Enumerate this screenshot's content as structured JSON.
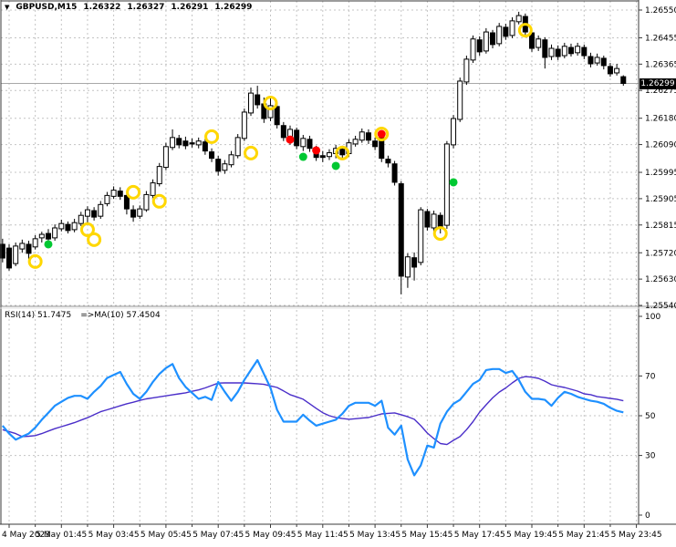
{
  "header": {
    "dropdown_icon": "▼",
    "symbol": "GBPUSD,M15",
    "open": "1.26322",
    "high": "1.26327",
    "low": "1.26291",
    "close": "1.26299"
  },
  "rsi_header": {
    "rsi_label": "RSI(14) 51.7475",
    "ma_label": "=>MA(10) 57.4504"
  },
  "price_axis": {
    "labels": [
      "1.26550",
      "1.26455",
      "1.26365",
      "1.26275",
      "1.26180",
      "1.26090",
      "1.25995",
      "1.25905",
      "1.25815",
      "1.25720",
      "1.25630",
      "1.25540"
    ],
    "current": "1.26299"
  },
  "rsi_axis": {
    "labels": [
      "100",
      "70",
      "50",
      "30",
      "0"
    ],
    "values": [
      100,
      70,
      50,
      30,
      0
    ],
    "level_lines": [
      70,
      50,
      30
    ]
  },
  "time_axis": {
    "labels": [
      "4 May 2023",
      "5 May 01:45",
      "5 May 03:45",
      "5 May 05:45",
      "5 May 07:45",
      "5 May 09:45",
      "5 May 11:45",
      "5 May 13:45",
      "5 May 15:45",
      "5 May 17:45",
      "5 May 19:45",
      "5 May 21:45",
      "5 May 23:45"
    ]
  },
  "colors": {
    "background": "#FFFFFF",
    "grid": "#C4C4C4",
    "border": "#3A3A3A",
    "candle_up_fill": "#FFFFFF",
    "candle_down_fill": "#000000",
    "candle_border": "#000000",
    "rsi_line": "#1E90FF",
    "rsi_ma_line": "#4A2EC9",
    "signal_circle": "#FFD700",
    "buy_dot": "#00C832",
    "sell_dot": "#FF0000",
    "current_price_line": "#A8A8A8",
    "current_price_bg": "#000000",
    "current_price_text": "#FFFFFF",
    "axis_text": "#000000"
  },
  "chart_data": [
    {
      "type": "candlestick",
      "symbol": "GBPUSD",
      "timeframe": "M15",
      "ylim": [
        1.2554,
        1.2655
      ],
      "ohlc": [
        [
          1.25749,
          1.25768,
          1.25687,
          1.25702
        ],
        [
          1.25736,
          1.25749,
          1.25659,
          1.25668
        ],
        [
          1.25683,
          1.25755,
          1.25674,
          1.25743
        ],
        [
          1.25733,
          1.25765,
          1.2572,
          1.25752
        ],
        [
          1.25749,
          1.25761,
          1.25696,
          1.25718
        ],
        [
          1.2574,
          1.2578,
          1.25731,
          1.25768
        ],
        [
          1.25771,
          1.25792,
          1.25755,
          1.25783
        ],
        [
          1.25786,
          1.25801,
          1.25755,
          1.25767
        ],
        [
          1.25771,
          1.25817,
          1.25761,
          1.25805
        ],
        [
          1.25802,
          1.25833,
          1.25793,
          1.2582
        ],
        [
          1.25817,
          1.25827,
          1.25786,
          1.25796
        ],
        [
          1.25799,
          1.25836,
          1.2579,
          1.25823
        ],
        [
          1.2582,
          1.2586,
          1.25811,
          1.25848
        ],
        [
          1.25845,
          1.25879,
          1.25823,
          1.25867
        ],
        [
          1.25864,
          1.25876,
          1.2583,
          1.25842
        ],
        [
          1.25845,
          1.25897,
          1.25836,
          1.25885
        ],
        [
          1.25888,
          1.25928,
          1.25879,
          1.25916
        ],
        [
          1.25913,
          1.25947,
          1.25904,
          1.25934
        ],
        [
          1.25931,
          1.25944,
          1.25901,
          1.25913
        ],
        [
          1.25916,
          1.25928,
          1.25851,
          1.2587
        ],
        [
          1.25867,
          1.25882,
          1.25826,
          1.25842
        ],
        [
          1.25845,
          1.25882,
          1.25836,
          1.2587
        ],
        [
          1.25867,
          1.25931,
          1.2586,
          1.25919
        ],
        [
          1.25916,
          1.25971,
          1.25907,
          1.25959
        ],
        [
          1.25956,
          1.26027,
          1.25947,
          1.26015
        ],
        [
          1.26012,
          1.26096,
          1.26003,
          1.26083
        ],
        [
          1.2608,
          1.26142,
          1.26071,
          1.26114
        ],
        [
          1.26111,
          1.26123,
          1.26077,
          1.26089
        ],
        [
          1.26102,
          1.26117,
          1.26074,
          1.26086
        ],
        [
          1.26096,
          1.26111,
          1.2608,
          1.26092
        ],
        [
          1.26089,
          1.26114,
          1.26077,
          1.26102
        ],
        [
          1.26099,
          1.26111,
          1.26055,
          1.26068
        ],
        [
          1.26065,
          1.26077,
          1.2603,
          1.26043
        ],
        [
          1.2604,
          1.26052,
          1.25984,
          1.25999
        ],
        [
          1.26002,
          1.26037,
          1.2599,
          1.26024
        ],
        [
          1.26021,
          1.26068,
          1.26012,
          1.26055
        ],
        [
          1.26052,
          1.26126,
          1.26043,
          1.26114
        ],
        [
          1.26111,
          1.26213,
          1.26102,
          1.26201
        ],
        [
          1.26198,
          1.26285,
          1.26188,
          1.26266
        ],
        [
          1.2626,
          1.26291,
          1.26213,
          1.26226
        ],
        [
          1.26229,
          1.26251,
          1.26164,
          1.26179
        ],
        [
          1.26182,
          1.26248,
          1.2617,
          1.26223
        ],
        [
          1.2622,
          1.26232,
          1.26145,
          1.26158
        ],
        [
          1.26155,
          1.26167,
          1.26102,
          1.26114
        ],
        [
          1.26111,
          1.26155,
          1.26089,
          1.26142
        ],
        [
          1.26139,
          1.26148,
          1.26074,
          1.26086
        ],
        [
          1.26083,
          1.26123,
          1.26068,
          1.26111
        ],
        [
          1.26108,
          1.2612,
          1.26065,
          1.26077
        ],
        [
          1.26074,
          1.26086,
          1.26034,
          1.26046
        ],
        [
          1.26052,
          1.26068,
          1.2603,
          1.26046
        ],
        [
          1.26049,
          1.26074,
          1.26037,
          1.26062
        ],
        [
          1.26059,
          1.26089,
          1.26043,
          1.26077
        ],
        [
          1.26074,
          1.26086,
          1.2604,
          1.26055
        ],
        [
          1.26059,
          1.26108,
          1.26049,
          1.26096
        ],
        [
          1.26092,
          1.2612,
          1.26083,
          1.26108
        ],
        [
          1.26105,
          1.26145,
          1.26096,
          1.26133
        ],
        [
          1.2613,
          1.26142,
          1.26092,
          1.26105
        ],
        [
          1.26102,
          1.26114,
          1.26071,
          1.26083
        ],
        [
          1.26114,
          1.2613,
          1.2603,
          1.26043
        ],
        [
          1.2604,
          1.26052,
          1.26012,
          1.26027
        ],
        [
          1.26024,
          1.26034,
          1.2595,
          1.25961
        ],
        [
          1.25956,
          1.25965,
          1.25578,
          1.2564
        ],
        [
          1.25637,
          1.25718,
          1.256,
          1.25706
        ],
        [
          1.25703,
          1.25721,
          1.25625,
          1.25671
        ],
        [
          1.25687,
          1.25876,
          1.25677,
          1.25867
        ],
        [
          1.25861,
          1.2587,
          1.25796,
          1.25808
        ],
        [
          1.25805,
          1.25864,
          1.25793,
          1.25852
        ],
        [
          1.25848,
          1.25858,
          1.25786,
          1.25811
        ],
        [
          1.25814,
          1.26102,
          1.25802,
          1.26092
        ],
        [
          1.26089,
          1.26191,
          1.26077,
          1.26179
        ],
        [
          1.26176,
          1.26319,
          1.26167,
          1.26307
        ],
        [
          1.26304,
          1.26394,
          1.26294,
          1.26382
        ],
        [
          1.26379,
          1.26463,
          1.26369,
          1.26451
        ],
        [
          1.26448,
          1.2646,
          1.26394,
          1.26407
        ],
        [
          1.2641,
          1.26488,
          1.26401,
          1.26475
        ],
        [
          1.26472,
          1.26482,
          1.26419,
          1.26432
        ],
        [
          1.26435,
          1.26506,
          1.26426,
          1.26494
        ],
        [
          1.26491,
          1.26503,
          1.26448,
          1.2646
        ],
        [
          1.26463,
          1.26525,
          1.26454,
          1.26513
        ],
        [
          1.2651,
          1.26544,
          1.26501,
          1.26531
        ],
        [
          1.26528,
          1.26538,
          1.26463,
          1.26475
        ],
        [
          1.26472,
          1.26482,
          1.26407,
          1.26419
        ],
        [
          1.26422,
          1.26463,
          1.2641,
          1.26451
        ],
        [
          1.26448,
          1.26457,
          1.2635,
          1.26388
        ],
        [
          1.26391,
          1.26432,
          1.26379,
          1.26419
        ],
        [
          1.26416,
          1.26429,
          1.26379,
          1.26391
        ],
        [
          1.26394,
          1.26438,
          1.26385,
          1.26426
        ],
        [
          1.26422,
          1.26435,
          1.26391,
          1.26401
        ],
        [
          1.26404,
          1.26438,
          1.26394,
          1.26426
        ],
        [
          1.26422,
          1.26432,
          1.26382,
          1.26394
        ],
        [
          1.26391,
          1.26404,
          1.26354,
          1.26366
        ],
        [
          1.26369,
          1.26401,
          1.2636,
          1.26388
        ],
        [
          1.26385,
          1.26394,
          1.26347,
          1.2636
        ],
        [
          1.26357,
          1.26369,
          1.26322,
          1.26332
        ],
        [
          1.26335,
          1.26366,
          1.26326,
          1.2635
        ],
        [
          1.26322,
          1.26327,
          1.26291,
          1.26299
        ]
      ],
      "markers": {
        "signal_circles": [
          [
            5,
            1.2569
          ],
          [
            13,
            1.25799
          ],
          [
            14,
            1.25765
          ],
          [
            20,
            1.25927
          ],
          [
            24,
            1.25896
          ],
          [
            32,
            1.26117
          ],
          [
            38,
            1.26061
          ],
          [
            41,
            1.26232
          ],
          [
            52,
            1.26061
          ],
          [
            58,
            1.26126
          ],
          [
            67,
            1.25786
          ],
          [
            80,
            1.26481
          ]
        ],
        "buy_dots": [
          [
            7,
            1.25749
          ],
          [
            46,
            1.26048
          ],
          [
            51,
            1.26017
          ],
          [
            69,
            1.25961
          ]
        ],
        "sell_dots": [
          [
            44,
            1.26107
          ],
          [
            48,
            1.2607
          ],
          [
            58,
            1.26126
          ]
        ]
      },
      "current_price": 1.26299
    },
    {
      "type": "line",
      "name": "RSI(14)",
      "ma_name": "MA(10)",
      "ylim": [
        0,
        100
      ],
      "rsi_values": [
        45,
        41,
        38,
        39.5,
        41,
        44,
        48,
        51.5,
        55,
        57,
        59,
        60,
        60,
        58.5,
        62,
        65,
        69,
        70.5,
        72,
        66,
        61,
        58.5,
        62,
        67,
        71,
        74,
        76,
        69,
        64.5,
        61.5,
        58.5,
        59.5,
        58,
        67,
        62,
        57.5,
        62,
        68,
        73,
        78,
        71,
        64,
        53,
        47,
        47,
        47,
        50.5,
        47.5,
        45,
        46,
        47,
        48,
        51,
        55,
        56.5,
        56.5,
        56.5,
        55,
        57.5,
        44,
        40.5,
        45,
        28,
        20,
        25,
        35,
        34,
        46,
        52,
        56,
        58,
        62,
        66,
        68,
        73,
        73.5,
        73.5,
        71.5,
        72.5,
        68,
        62,
        58.5,
        58.5,
        58,
        55,
        59,
        62,
        61,
        59.5,
        58.5,
        57.5,
        57,
        56,
        54,
        52.5,
        51.7
      ],
      "ma_values": [
        43,
        42,
        41,
        39.5,
        39.7,
        40,
        41,
        42.3,
        43.5,
        44.5,
        45.5,
        46.5,
        47.8,
        49,
        50.5,
        52,
        53,
        54,
        55,
        56,
        56.8,
        57.7,
        58.5,
        59,
        59.5,
        60,
        60.5,
        61,
        61.5,
        62.3,
        63,
        64,
        65.2,
        66.4,
        66.5,
        66.5,
        66.5,
        66.5,
        66.3,
        66.1,
        65.8,
        65,
        64.2,
        62.5,
        60.6,
        59.5,
        58.3,
        56,
        53.7,
        51.5,
        50,
        49.1,
        48.6,
        48.2,
        48.5,
        48.8,
        49.1,
        50,
        50.9,
        51.2,
        51.4,
        50.5,
        49.5,
        48.2,
        45,
        41.3,
        38.5,
        36,
        35.5,
        37.6,
        39.5,
        43,
        47,
        51.8,
        55.5,
        59,
        61.9,
        64,
        66.5,
        68.8,
        69.7,
        69.4,
        68.8,
        67.4,
        65.6,
        64.8,
        64.2,
        63.3,
        62.4,
        61,
        60.6,
        59.6,
        59.2,
        58.7,
        58.3,
        57.5
      ],
      "final_rsi": 51.7475,
      "final_ma": 57.4504
    }
  ]
}
